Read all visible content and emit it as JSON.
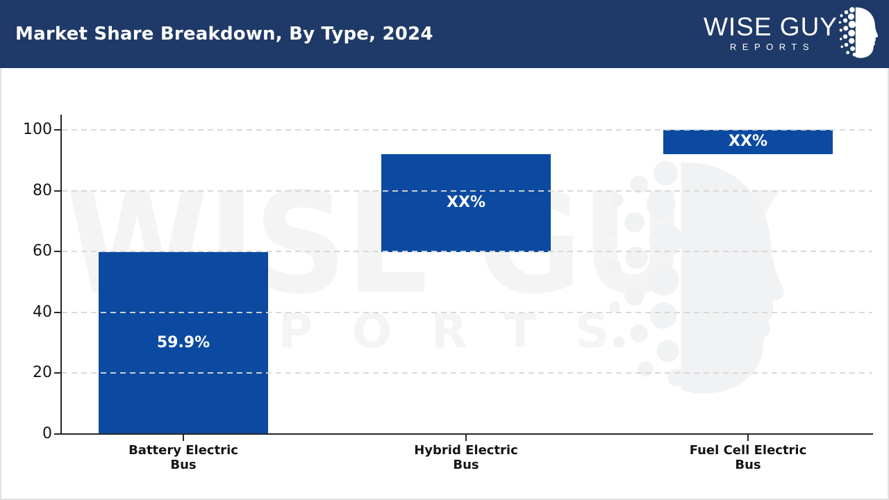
{
  "header": {
    "title": "Market Share Breakdown, By Type, 2024",
    "logo": {
      "name": "WISE GUY",
      "sub": "REPORTS"
    }
  },
  "watermark": {
    "name": "WISE GUY",
    "sub": "REPORTS"
  },
  "colors": {
    "header_bg": "#1f3a68",
    "bar": "#0b4aa0",
    "grid": "#d6d6d6",
    "axis": "#262626",
    "value_label": "#ffffff",
    "watermark": "#f4f4f4"
  },
  "chart_data": {
    "type": "bar",
    "subtype": "waterfall",
    "title": "Market Share Breakdown, By Type, 2024",
    "categories": [
      {
        "lines": [
          "Battery Electric",
          "Bus"
        ]
      },
      {
        "lines": [
          "Hybrid Electric",
          "Bus"
        ]
      },
      {
        "lines": [
          "Fuel Cell Electric",
          "Bus"
        ]
      }
    ],
    "bars": [
      {
        "name": "Battery Electric Bus",
        "base": 0,
        "top": 59.9,
        "label": "59.9%"
      },
      {
        "name": "Hybrid Electric Bus",
        "base": 59.9,
        "top": 92.1,
        "label": "XX%"
      },
      {
        "name": "Fuel Cell Electric Bus",
        "base": 92.1,
        "top": 100,
        "label": "XX%"
      }
    ],
    "xlabel": "",
    "ylabel": "",
    "ylim": [
      0,
      105
    ],
    "yticks": [
      0,
      20,
      40,
      60,
      80,
      100
    ],
    "grid": "horizontal-dashed",
    "legend": "none"
  }
}
